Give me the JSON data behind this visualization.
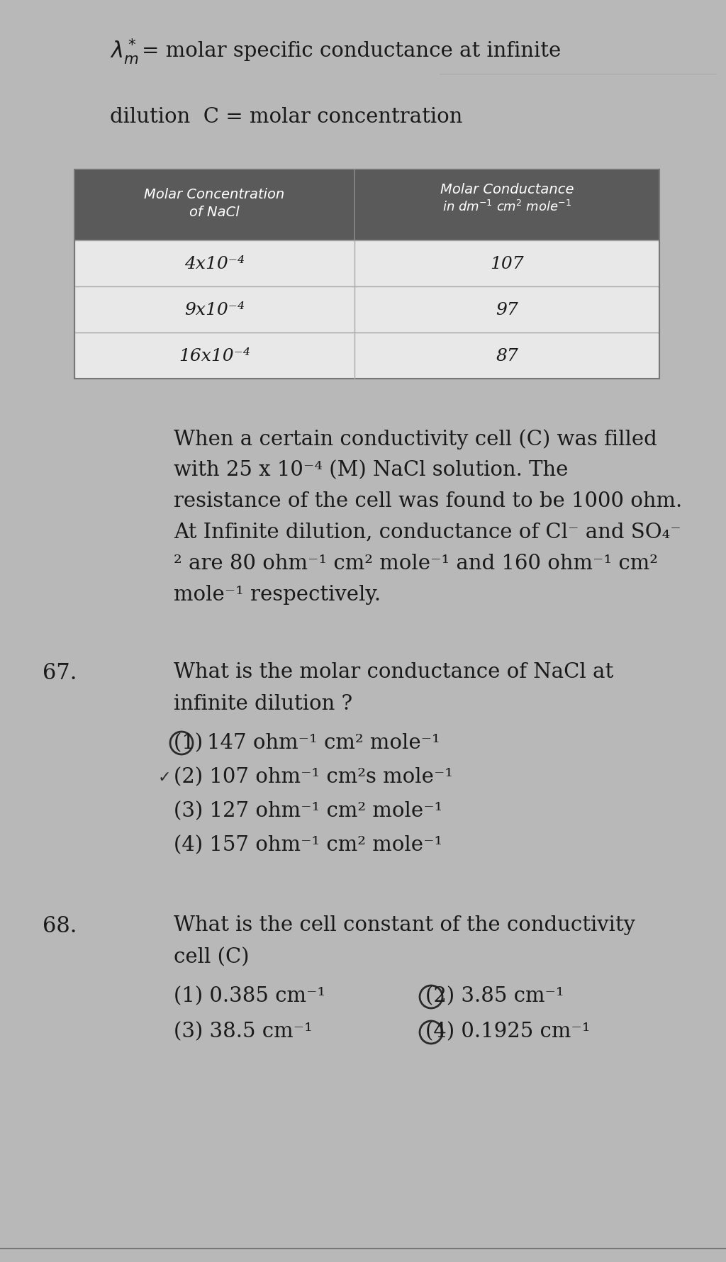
{
  "bg_color": "#b8b8b8",
  "text_color": "#1a1a1a",
  "table_header_bg": "#5a5a5a",
  "table_rows": [
    [
      "4x10⁻⁴",
      "107"
    ],
    [
      "9x10⁻⁴",
      "97"
    ],
    [
      "16x10⁻⁴",
      "87"
    ]
  ],
  "para_lines": [
    "When a certain conductivity cell (C) was filled",
    "with 25 x 10⁻⁴ (M) NaCl solution. The",
    "resistance of the cell was found to be 1000 ohm.",
    "At Infinite dilution, conductance of Cl⁻ and SO₄⁻",
    "² are 80 ohm⁻¹ cm² mole⁻¹ and 160 ohm⁻¹ cm²",
    "mole⁻¹ respectively."
  ],
  "q67_opts": [
    "(1) 147 ohm⁻¹ cm² mole⁻¹",
    "(2) 107 ohm⁻¹ cm²s mole⁻¹",
    "(3) 127 ohm⁻¹ cm² mole⁻¹",
    "(4) 157 ohm⁻¹ cm² mole⁻¹"
  ],
  "q68_opts_col1": [
    "(1) 0.385 cm⁻¹",
    "(3) 38.5 cm⁻¹"
  ],
  "q68_opts_col2": [
    "(2) 3.85 cm⁻¹",
    "(4) 0.1925 cm⁻¹"
  ]
}
